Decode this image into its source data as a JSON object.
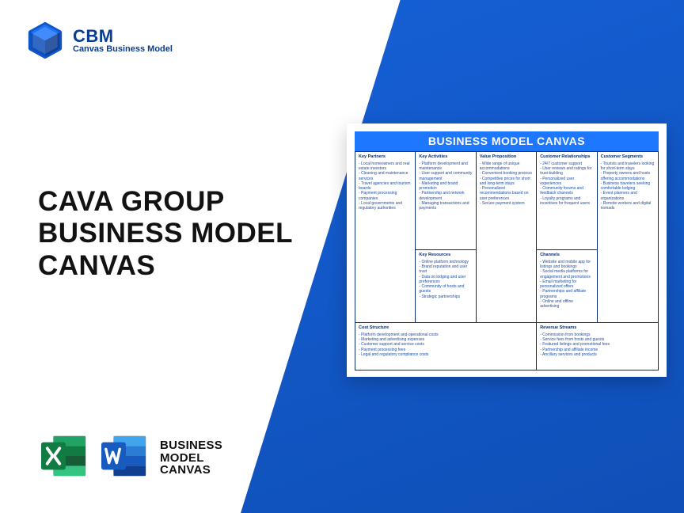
{
  "colors": {
    "brand_blue": "#0a3d91",
    "gradient_from": "#1560d6",
    "gradient_to": "#0f4fb7",
    "canvas_header": "#1e78ff",
    "canvas_border": "#0a2e6e",
    "canvas_text": "#1e4fa8",
    "title_black": "#121212",
    "excel_dark": "#107c41",
    "excel_light": "#21a366",
    "word_dark": "#103f91",
    "word_mid": "#185abd",
    "word_light": "#2b7cd3"
  },
  "brand": {
    "title": "CBM",
    "subtitle": "Canvas Business Model"
  },
  "main_title": {
    "line1": "CAVA GROUP",
    "line2": "BUSINESS MODEL",
    "line3": "CANVAS"
  },
  "footer_label": {
    "line1": "BUSINESS",
    "line2": "MODEL",
    "line3": "CANVAS"
  },
  "canvas": {
    "title": "BUSINESS MODEL CANVAS",
    "sections": {
      "key_partners": {
        "title": "Key Partners",
        "items": [
          "Local homeowners and real estate investors",
          "Cleaning and maintenance services",
          "Travel agencies and tourism boards",
          "Payment processing companies",
          "Local governments and regulatory authorities"
        ]
      },
      "key_activities": {
        "title": "Key Activities",
        "items": [
          "Platform development and maintenance",
          "User support and community management",
          "Marketing and brand promotion",
          "Partnership and network development",
          "Managing transactions and payments"
        ]
      },
      "value_proposition": {
        "title": "Value Proposition",
        "items": [
          "Wide range of unique accommodations",
          "Convenient booking process",
          "Competitive prices for short and long-term stays",
          "Personalized recommendations based on user preferences",
          "Secure payment system"
        ]
      },
      "customer_relationships": {
        "title": "Customer Relationships",
        "items": [
          "24/7 customer support",
          "User reviews and ratings for trust-building",
          "Personalized user experiences",
          "Community forums and feedback channels",
          "Loyalty programs and incentives for frequent users"
        ]
      },
      "customer_segments": {
        "title": "Customer Segments",
        "items": [
          "Tourists and travelers looking for short-term stays",
          "Property owners and hosts offering accommodations",
          "Business travelers seeking comfortable lodging",
          "Event planners and organizations",
          "Remote workers and digital nomads"
        ]
      },
      "key_resources": {
        "title": "Key Resources",
        "items": [
          "Online platform technology",
          "Brand reputation and user trust",
          "Data on lodging and user preferences",
          "Community of hosts and guests",
          "Strategic partnerships"
        ]
      },
      "channels": {
        "title": "Channels",
        "items": [
          "Website and mobile app for listings and bookings",
          "Social media platforms for engagement and promotions",
          "Email marketing for personalized offers",
          "Partnerships and affiliate programs",
          "Online and offline advertising"
        ]
      },
      "cost_structure": {
        "title": "Cost Structure",
        "items": [
          "Platform development and operational costs",
          "Marketing and advertising expenses",
          "Customer support and service costs",
          "Payment processing fees",
          "Legal and regulatory compliance costs"
        ]
      },
      "revenue_streams": {
        "title": "Revenue Streams",
        "items": [
          "Commission from bookings",
          "Service fees from hosts and guests",
          "Featured listings and promotional fees",
          "Partnership and affiliate income",
          "Ancillary services and products"
        ]
      }
    }
  }
}
